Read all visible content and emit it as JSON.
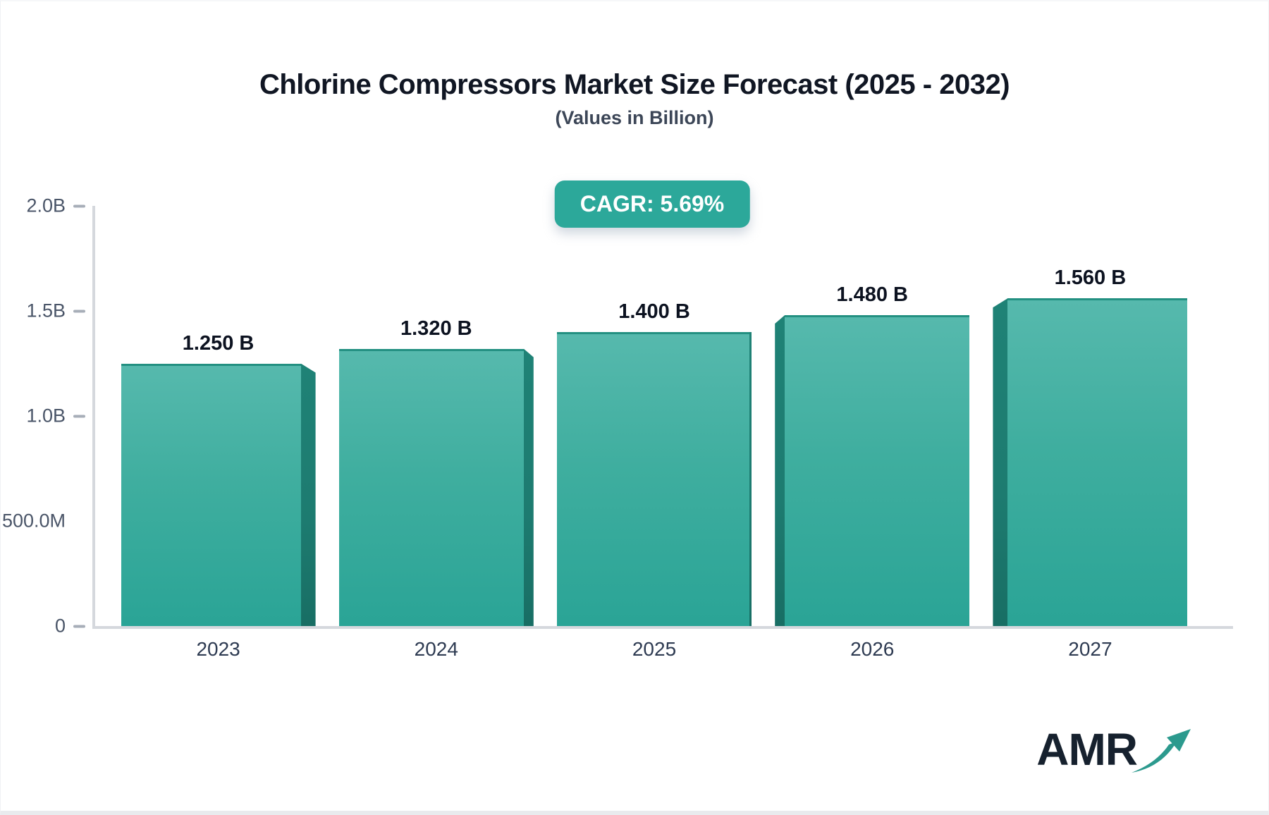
{
  "header": {
    "title": "Chlorine Compressors Market Size Forecast (2025 - 2032)",
    "subtitle": "(Values in Billion)",
    "cagr_badge": "CAGR: 5.69%"
  },
  "chart_data": {
    "type": "bar",
    "title": "Chlorine Compressors Market Size Forecast (2025 - 2032)",
    "subtitle": "(Values in Billion)",
    "cagr": "5.69%",
    "categories": [
      "2023",
      "2024",
      "2025",
      "2026",
      "2027"
    ],
    "values": [
      1.25,
      1.32,
      1.4,
      1.48,
      1.56
    ],
    "value_labels": [
      "1.250 B",
      "1.320 B",
      "1.400 B",
      "1.480 B",
      "1.560 B"
    ],
    "unit": "B",
    "ylim": [
      0,
      2.0
    ],
    "yticks": [
      {
        "label": "2.0B",
        "value": 2.0,
        "dash": true
      },
      {
        "label": "1.5B",
        "value": 1.5,
        "dash": true
      },
      {
        "label": "1.0B",
        "value": 1.0,
        "dash": true
      },
      {
        "label": "500.0M",
        "value": 0.5,
        "dash": false
      },
      {
        "label": "0",
        "value": 0.0,
        "dash": true
      }
    ],
    "grid": false,
    "legend": false,
    "bar_color_top": "#56b9ad",
    "bar_color_bottom": "#2aa496",
    "bar_side_color": "#1d7b70",
    "accent_color": "#2ca89a"
  },
  "branding": {
    "logo_text": "AMR"
  }
}
